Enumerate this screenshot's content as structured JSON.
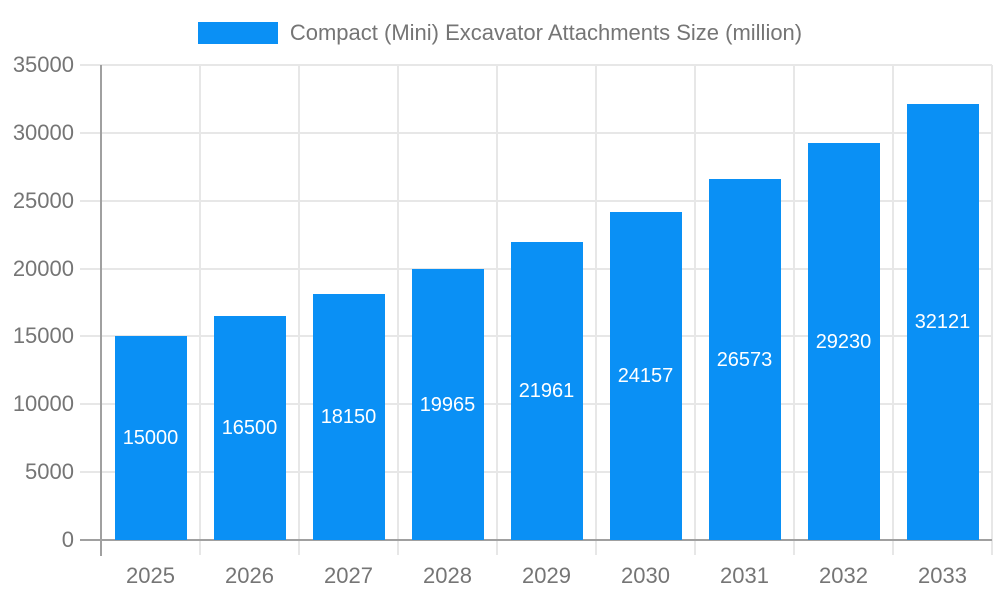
{
  "legend": {
    "label": "Compact (Mini) Excavator Attachments Size (million)",
    "swatch_color": "#0a90f5"
  },
  "chart_data": {
    "type": "bar",
    "title": "Compact (Mini) Excavator Attachments Size (million)",
    "categories": [
      "2025",
      "2026",
      "2027",
      "2028",
      "2029",
      "2030",
      "2031",
      "2032",
      "2033"
    ],
    "values": [
      15000,
      16500,
      18150,
      19965,
      21961,
      24157,
      26573,
      29230,
      32121
    ],
    "value_labels": [
      "15000",
      "16500",
      "18150",
      "19965",
      "21961",
      "24157",
      "26573",
      "29230",
      "32121"
    ],
    "xlabel": "",
    "ylabel": "",
    "ylim": [
      0,
      35000
    ],
    "ytick_step": 5000,
    "yticks": [
      0,
      5000,
      10000,
      15000,
      20000,
      25000,
      30000,
      35000
    ],
    "grid": true,
    "legend_position": "top",
    "colors": {
      "bar": "#0a90f5",
      "value_label": "#ffffff",
      "axis_text": "#757575",
      "gridline": "#e7e7e7",
      "axis_line": "#a0a0a0",
      "background": "#ffffff"
    }
  }
}
